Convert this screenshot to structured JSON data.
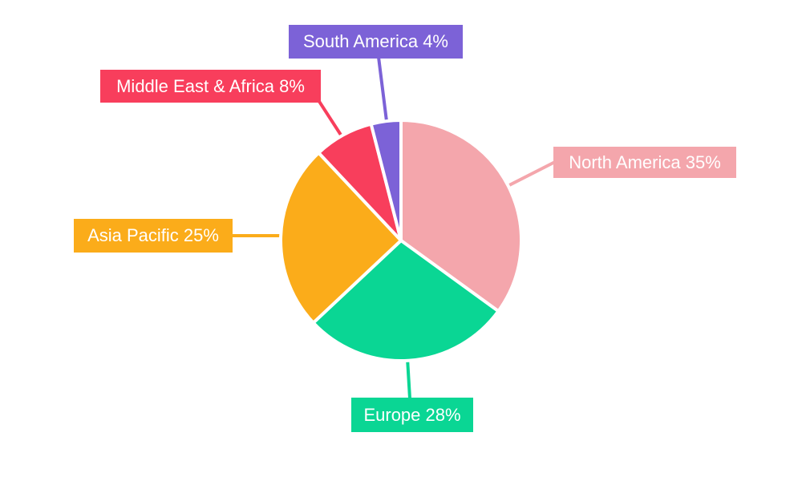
{
  "chart_data": {
    "type": "pie",
    "title": "",
    "legend": "none",
    "background_color": "#ffffff",
    "label_text_color": "#ffffff",
    "slice_border_color": "#ffffff",
    "start_angle": "12 o'clock",
    "direction": "clockwise",
    "series": [
      {
        "name": "North America",
        "value": 35,
        "color": "#F4A6AC",
        "label": "North America 35%"
      },
      {
        "name": "Europe",
        "value": 28,
        "color": "#0AD694",
        "label": "Europe 28%"
      },
      {
        "name": "Asia Pacific",
        "value": 25,
        "color": "#FBAC1A",
        "label": "Asia Pacific 25%"
      },
      {
        "name": "Middle East & Africa",
        "value": 8,
        "color": "#F83E5C",
        "label": "Middle East & Africa 8%"
      },
      {
        "name": "South America",
        "value": 4,
        "color": "#7C62D7",
        "label": "South America 4%"
      }
    ]
  }
}
